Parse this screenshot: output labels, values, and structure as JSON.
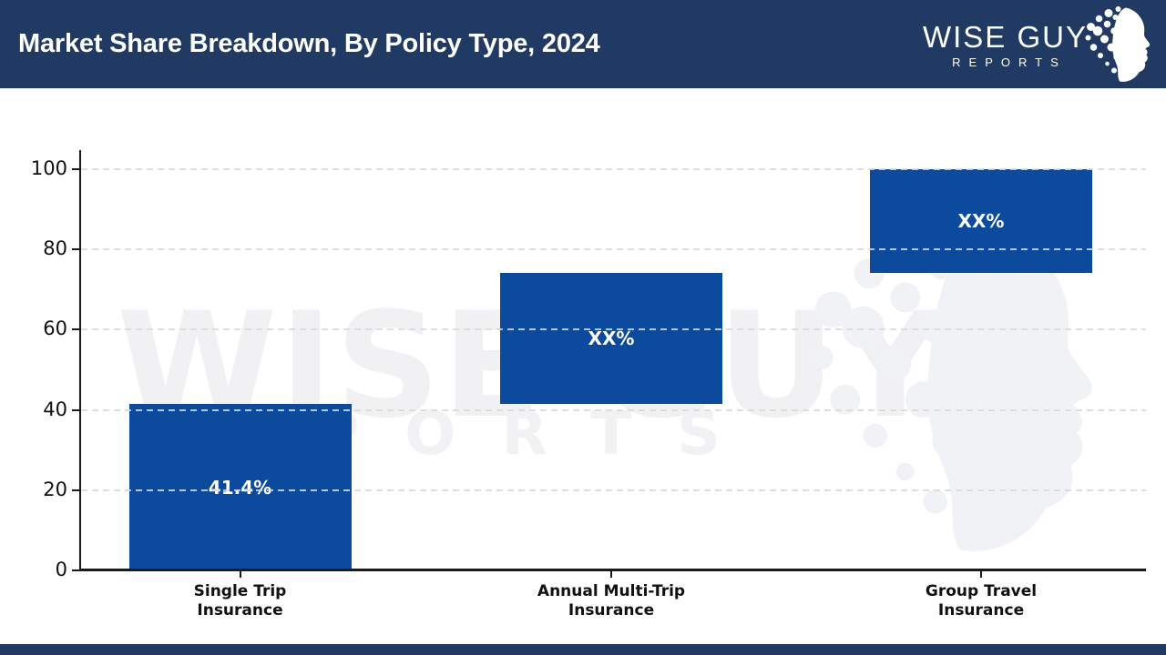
{
  "header": {
    "title": "Market Share Breakdown, By Policy Type, 2024",
    "logo": {
      "name": "WISE GUY",
      "subname": "REPORTS"
    }
  },
  "colors": {
    "header_bg": "#213a63",
    "footer_bg": "#213a63",
    "bar": "#0b4a9d",
    "grid": "#d9d9d9",
    "axis": "#1a1a1a",
    "watermark": "#f1f1f4"
  },
  "watermark": {
    "line1": "WISE GUY",
    "line2": "REPORTS"
  },
  "chart_data": {
    "type": "bar",
    "subtype": "stacked-waterfall",
    "title": "Market Share Breakdown, By Policy Type, 2024",
    "categories": [
      "Single Trip\nInsurance",
      "Annual Multi-Trip\nInsurance",
      "Group Travel\nInsurance"
    ],
    "segments": [
      {
        "category": "Single Trip Insurance",
        "start": 0,
        "end": 41.4,
        "label": "41.4%"
      },
      {
        "category": "Annual Multi-Trip Insurance",
        "start": 41.4,
        "end": 74.2,
        "label": "XX%"
      },
      {
        "category": "Group Travel Insurance",
        "start": 74.2,
        "end": 100,
        "label": "XX%"
      }
    ],
    "yticks": [
      0,
      20,
      40,
      60,
      80,
      100
    ],
    "ytick_labels": [
      "0",
      "20",
      "40",
      "60",
      "80",
      "100"
    ],
    "ylim": [
      0,
      105
    ],
    "xlabel": "",
    "ylabel": "",
    "grid": "horizontal-dashed",
    "legend": "none",
    "bar_color": "#0b4a9d"
  }
}
